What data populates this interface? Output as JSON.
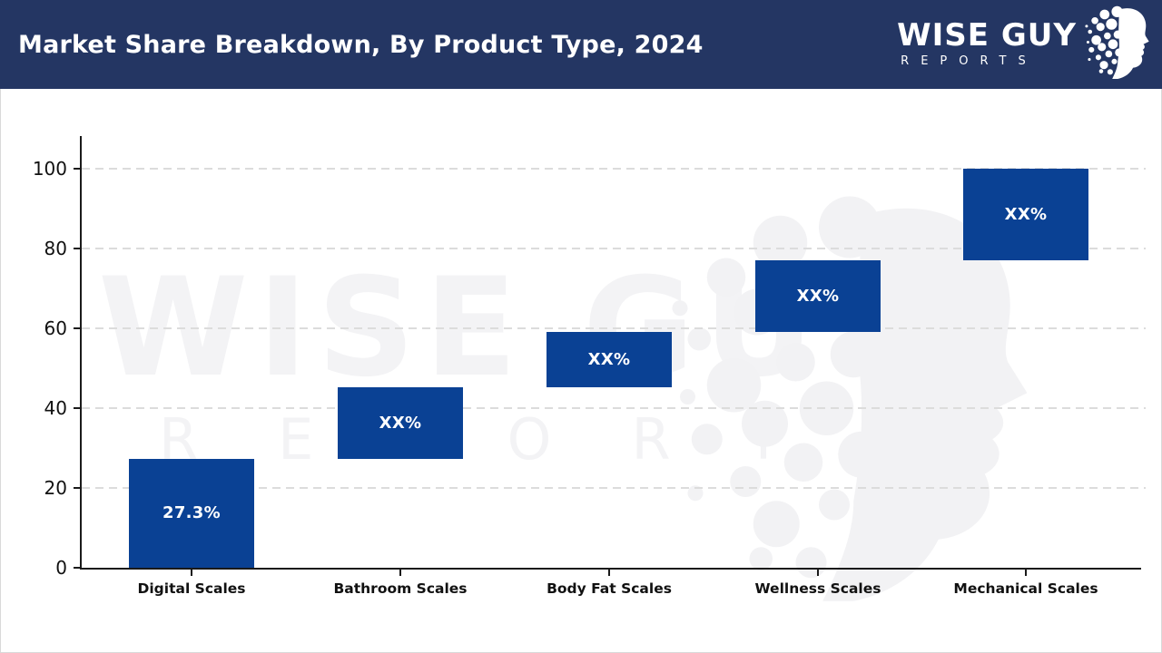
{
  "header": {
    "title": "Market Share Breakdown, By Product Type, 2024",
    "logo": {
      "line1": "WISE GUY",
      "line2": "REPORTS"
    }
  },
  "watermark": {
    "line1": "WISE GUY",
    "line2": "REPORTS"
  },
  "chart_data": {
    "type": "bar",
    "subtype": "floating-waterfall",
    "title": "Market Share Breakdown, By Product Type, 2024",
    "categories": [
      "Digital Scales",
      "Bathroom Scales",
      "Body Fat Scales",
      "Wellness Scales",
      "Mechanical Scales"
    ],
    "series": [
      {
        "name": "Market Share (%)",
        "segments": [
          {
            "from": 0,
            "to": 27.3,
            "label": "27.3%"
          },
          {
            "from": 27.3,
            "to": 45.3,
            "label": "XX%"
          },
          {
            "from": 45.3,
            "to": 59.0,
            "label": "XX%"
          },
          {
            "from": 59.0,
            "to": 77.0,
            "label": "XX%"
          },
          {
            "from": 77.0,
            "to": 100.0,
            "label": "XX%"
          }
        ]
      }
    ],
    "xlabel": "",
    "ylabel": "",
    "ylim": [
      0,
      100
    ],
    "yticks": [
      0,
      20,
      40,
      60,
      80,
      100
    ],
    "grid": "horizontal-dashed",
    "legend": "none",
    "bar_color": "#0a4194",
    "bar_label_color": "#ffffff"
  },
  "colors": {
    "header_bg": "#243663",
    "bar": "#0a4194",
    "axis": "#1a1a1a",
    "grid": "#dcdcdc",
    "watermark": "#f3f3f5"
  }
}
